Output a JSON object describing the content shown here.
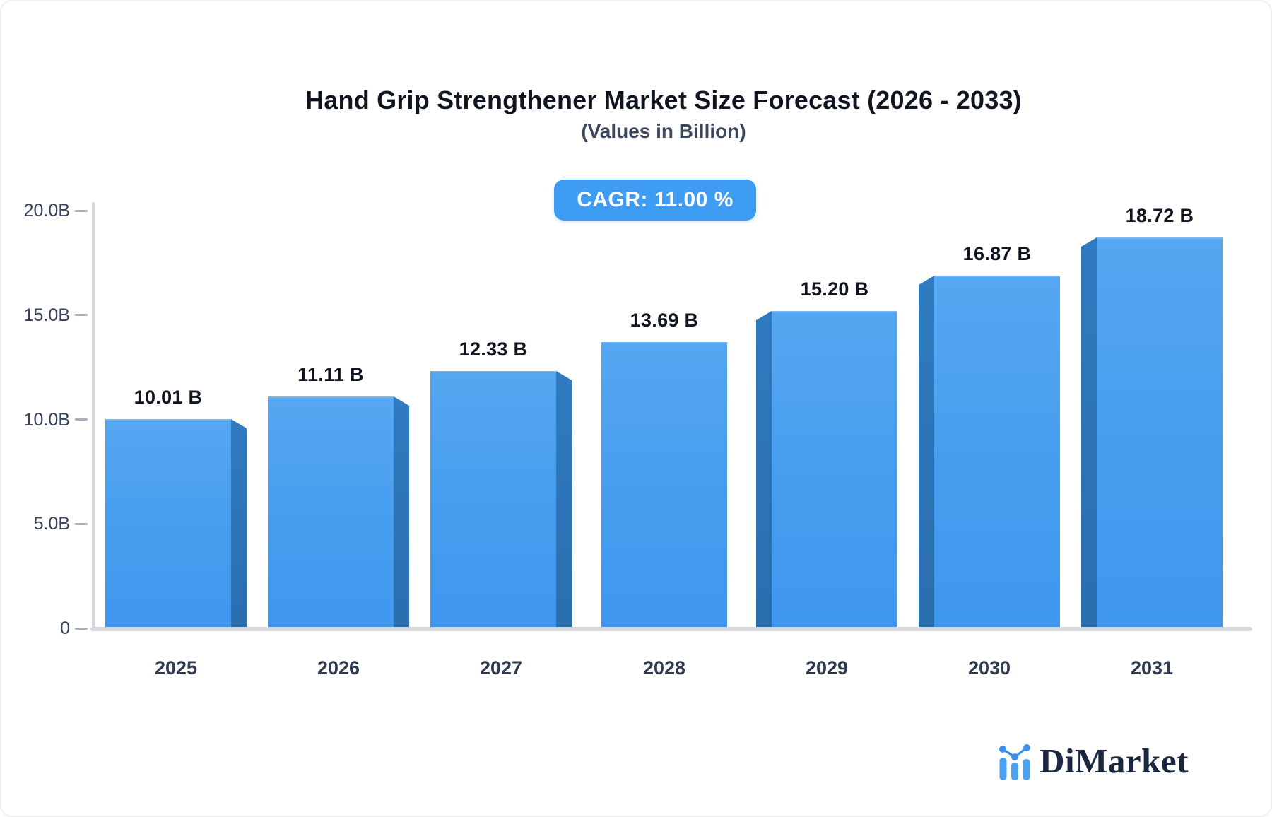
{
  "header": {
    "cagr_badge": "CAGR: 11.00 %"
  },
  "chart_data": {
    "type": "bar",
    "title": "Hand Grip Strengthener Market Size Forecast (2026 - 2033)",
    "subtitle": "(Values in Billion)",
    "categories": [
      "2025",
      "2026",
      "2027",
      "2028",
      "2029",
      "2030",
      "2031"
    ],
    "values": [
      10.01,
      11.11,
      12.33,
      13.69,
      15.2,
      16.87,
      18.72
    ],
    "bar_labels": [
      "10.01 B",
      "11.11 B",
      "12.33 B",
      "13.69 B",
      "15.20 B",
      "16.87 B",
      "18.72 B"
    ],
    "cagr_label": "CAGR: 11.00 %",
    "ylim": [
      0,
      20
    ],
    "yticks": [
      20,
      15,
      10,
      5,
      0
    ],
    "ytick_labels": [
      "20.0B",
      "15.0B",
      "10.0B",
      "5.0B",
      "0"
    ],
    "grid": false,
    "legend": "none",
    "bar_face_color": "#459def",
    "bar_side_color": "#2c73b7",
    "axis_color": "#d5d7dc",
    "tick_color": "#a8aeba",
    "label_color": "#36425b",
    "accent_color": "#3e9cf3"
  },
  "branding": {
    "name": "DiMarket",
    "logo_icon": "bar-line-chart-icon",
    "logo_blue": "#4ba1f0",
    "logo_text_color": "#1b2641"
  }
}
